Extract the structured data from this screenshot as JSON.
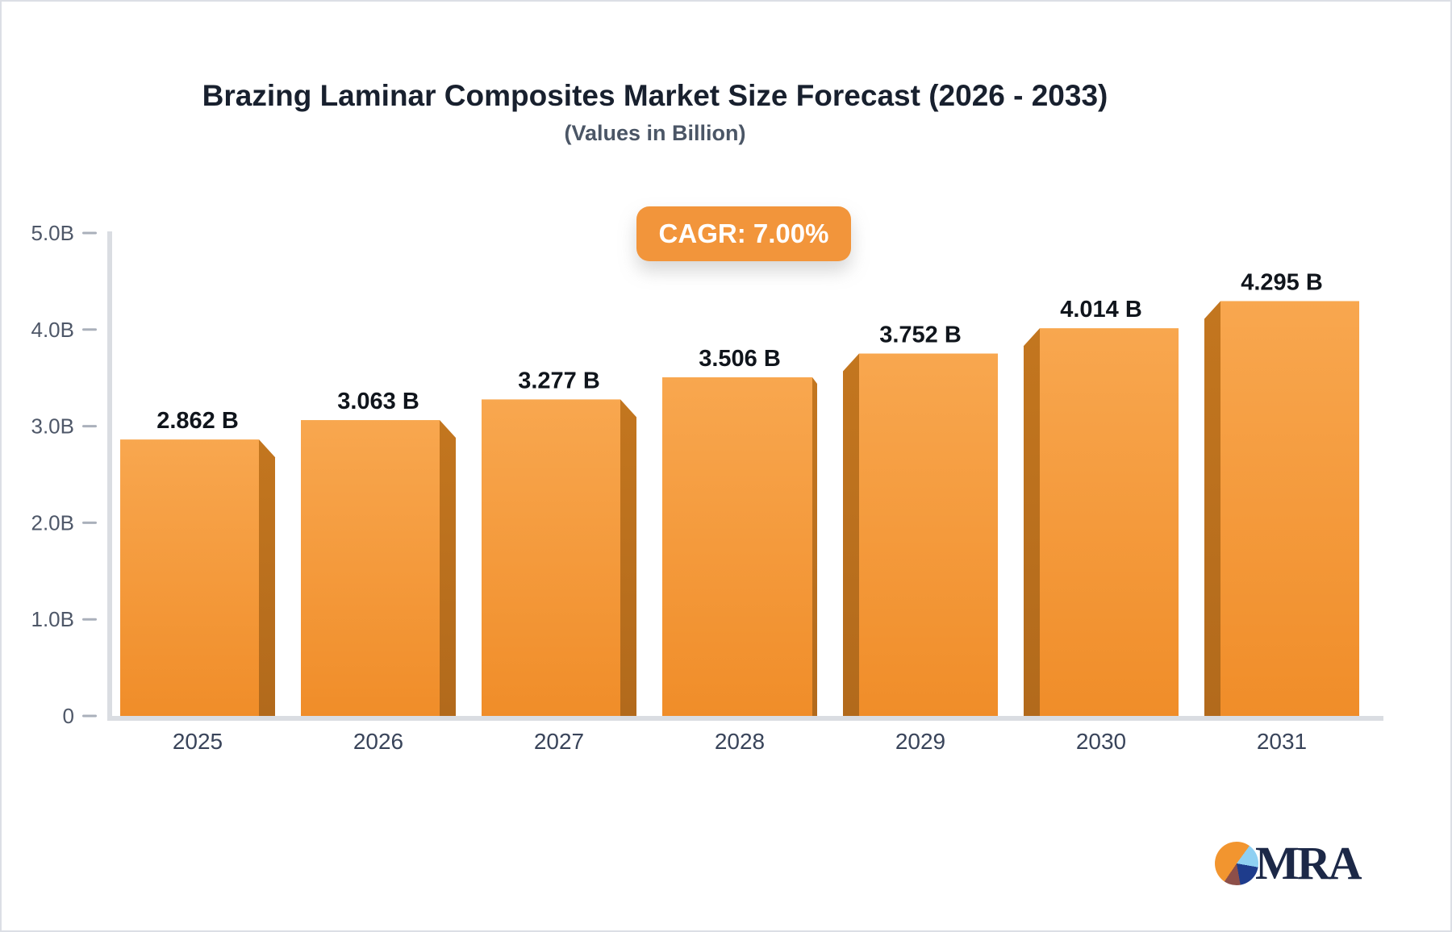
{
  "header": {
    "title": "Brazing Laminar Composites Market Size Forecast (2026 - 2033)",
    "subtitle": "(Values in Billion)",
    "cagr_label": "CAGR: 7.00%"
  },
  "chart_data": {
    "type": "bar",
    "title": "Brazing Laminar Composites Market Size Forecast (2026 - 2033)",
    "subtitle": "(Values in Billion)",
    "cagr": "7.00%",
    "categories": [
      "2025",
      "2026",
      "2027",
      "2028",
      "2029",
      "2030",
      "2031"
    ],
    "values": [
      2.862,
      3.063,
      3.277,
      3.506,
      3.752,
      4.014,
      4.295
    ],
    "value_labels": [
      "2.862 B",
      "3.063 B",
      "3.277 B",
      "3.506 B",
      "3.752 B",
      "4.014 B",
      "4.295 B"
    ],
    "ylim": [
      0,
      5
    ],
    "ytick_labels": [
      "0",
      "1.0B",
      "2.0B",
      "3.0B",
      "4.0B",
      "5.0B"
    ],
    "grid": false,
    "legend": null,
    "xlabel": "",
    "ylabel": "",
    "bar_3d_sides": [
      "right",
      "right",
      "right",
      "center",
      "left",
      "left",
      "left"
    ],
    "colors": {
      "bar_face_top": "#f8a74f",
      "bar_face_bottom": "#f08d29",
      "bar_side_top": "#c3761f",
      "bar_side_bottom": "#b26a1c",
      "axis_line": "#dadde2",
      "tick_dash": "#aab0bb",
      "ytick_text": "#4e5768",
      "xtick_text": "#39445a",
      "value_text": "#10151c",
      "badge_bg": "#f2953b",
      "badge_text": "#ffffff"
    }
  },
  "logo": {
    "text": "MRA",
    "pie_colors": [
      "#f2952f",
      "#8fd0f2",
      "#1e3c8c",
      "#8d4f49"
    ]
  }
}
